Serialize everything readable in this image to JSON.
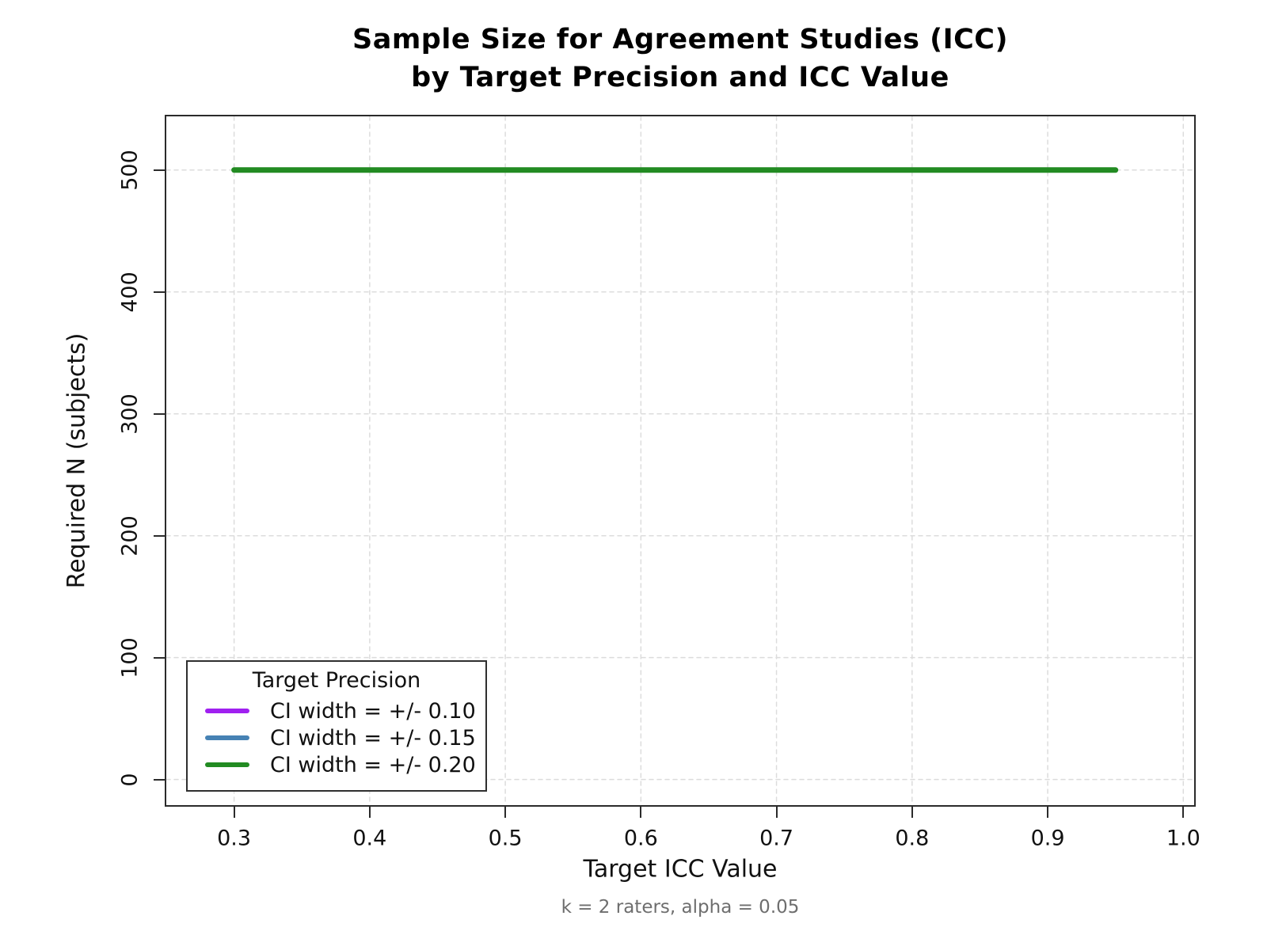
{
  "title": {
    "line1": "Sample Size for Agreement Studies (ICC)",
    "line2": "by Target Precision and ICC Value"
  },
  "subtitle": "k = 2 raters, alpha = 0.05",
  "axes": {
    "x": {
      "label": "Target ICC Value",
      "tick_labels": [
        "0.3",
        "0.4",
        "0.5",
        "0.6",
        "0.7",
        "0.8",
        "0.9",
        "1.0"
      ],
      "ticks": [
        0.3,
        0.4,
        0.5,
        0.6,
        0.7,
        0.8,
        0.9,
        1.0
      ]
    },
    "y": {
      "label": "Required N (subjects)",
      "tick_labels": [
        "0",
        "100",
        "200",
        "300",
        "400",
        "500"
      ],
      "ticks": [
        0,
        100,
        200,
        300,
        400,
        500
      ]
    }
  },
  "legend": {
    "title": "Target Precision"
  },
  "chart_data": {
    "type": "line",
    "title": "Sample Size for Agreement Studies (ICC) by Target Precision and ICC Value",
    "subtitle": "k = 2 raters, alpha = 0.05",
    "xlabel": "Target ICC Value",
    "ylabel": "Required N (subjects)",
    "xlim": [
      0.25,
      1.008
    ],
    "ylim": [
      -21,
      544
    ],
    "x_ticks": [
      0.3,
      0.4,
      0.5,
      0.6,
      0.7,
      0.8,
      0.9,
      1.0
    ],
    "y_ticks": [
      0,
      100,
      200,
      300,
      400,
      500
    ],
    "grid": true,
    "grid_style": "dashed",
    "grid_color": "#dcdcdc",
    "legend_position": "bottom-left",
    "legend_title": "Target Precision",
    "note": "Only the green series line is visible in the plot area; it is a flat line at N = 500 spanning ICC 0.30 to 0.95.",
    "series": [
      {
        "name": "CI width = +/- 0.10",
        "color": "#A020F0",
        "visible_in_plot": false,
        "x": [],
        "y": []
      },
      {
        "name": "CI width = +/- 0.15",
        "color": "#4682B4",
        "visible_in_plot": false,
        "x": [],
        "y": []
      },
      {
        "name": "CI width = +/- 0.20",
        "color": "#228B22",
        "visible_in_plot": true,
        "x": [
          0.3,
          0.95
        ],
        "y": [
          500,
          500
        ]
      }
    ]
  }
}
